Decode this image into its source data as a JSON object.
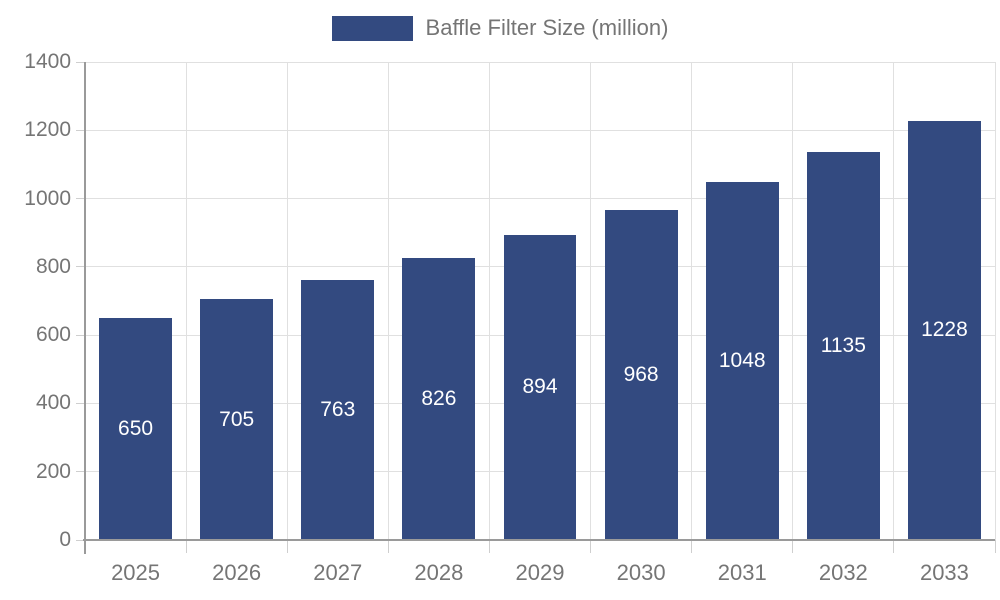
{
  "legend": {
    "label": "Baffle Filter Size (million)",
    "swatch_color": "#334a80"
  },
  "chart_data": {
    "type": "bar",
    "title": "",
    "xlabel": "",
    "ylabel": "",
    "series_name": "Baffle Filter Size (million)",
    "categories": [
      "2025",
      "2026",
      "2027",
      "2028",
      "2029",
      "2030",
      "2031",
      "2032",
      "2033"
    ],
    "values": [
      650,
      705,
      763,
      826,
      894,
      968,
      1048,
      1135,
      1228
    ],
    "ylim": [
      0,
      1400
    ],
    "yticks": [
      0,
      200,
      400,
      600,
      800,
      1000,
      1200,
      1400
    ],
    "grid": true,
    "legend_position": "top",
    "bar_color": "#334a80",
    "value_label_color": "#ffffff",
    "axis_text_color": "#757575",
    "grid_color": "#e0e0e0",
    "axis_line_color": "#9a9a9a"
  }
}
